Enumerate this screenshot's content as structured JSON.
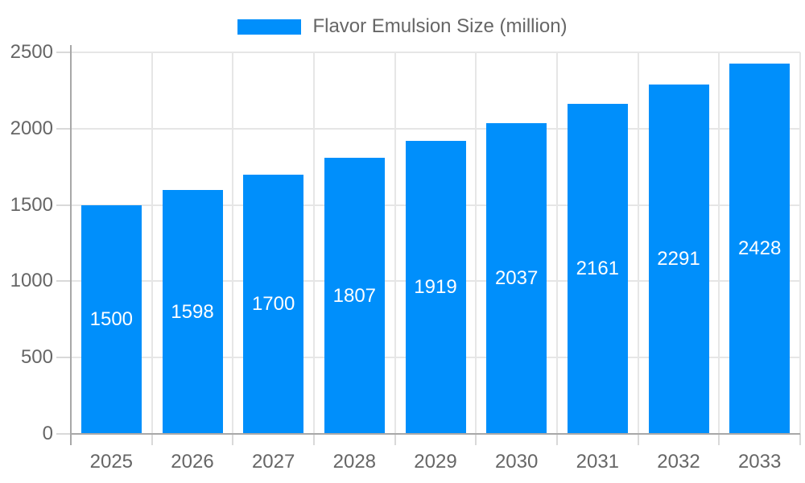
{
  "legend": {
    "label": "Flavor Emulsion Size (million)"
  },
  "chart_data": {
    "type": "bar",
    "title": "Flavor Emulsion Size (million)",
    "categories": [
      "2025",
      "2026",
      "2027",
      "2028",
      "2029",
      "2030",
      "2031",
      "2032",
      "2033"
    ],
    "values": [
      1500,
      1598,
      1700,
      1807,
      1919,
      2037,
      2161,
      2291,
      2428
    ],
    "xlabel": "",
    "ylabel": "",
    "ylim": [
      0,
      2500
    ],
    "yticks": [
      0,
      500,
      1000,
      1500,
      2000,
      2500
    ],
    "grid": true,
    "legend_position": "top-center",
    "colors": {
      "bar": "#008FFB",
      "value_label": "#ffffff",
      "axis_text": "#666666",
      "grid_line": "#e6e6e6",
      "tick_mark": "#d9d9d9",
      "axis_line": "#a8a8a8",
      "background": "#ffffff"
    }
  }
}
